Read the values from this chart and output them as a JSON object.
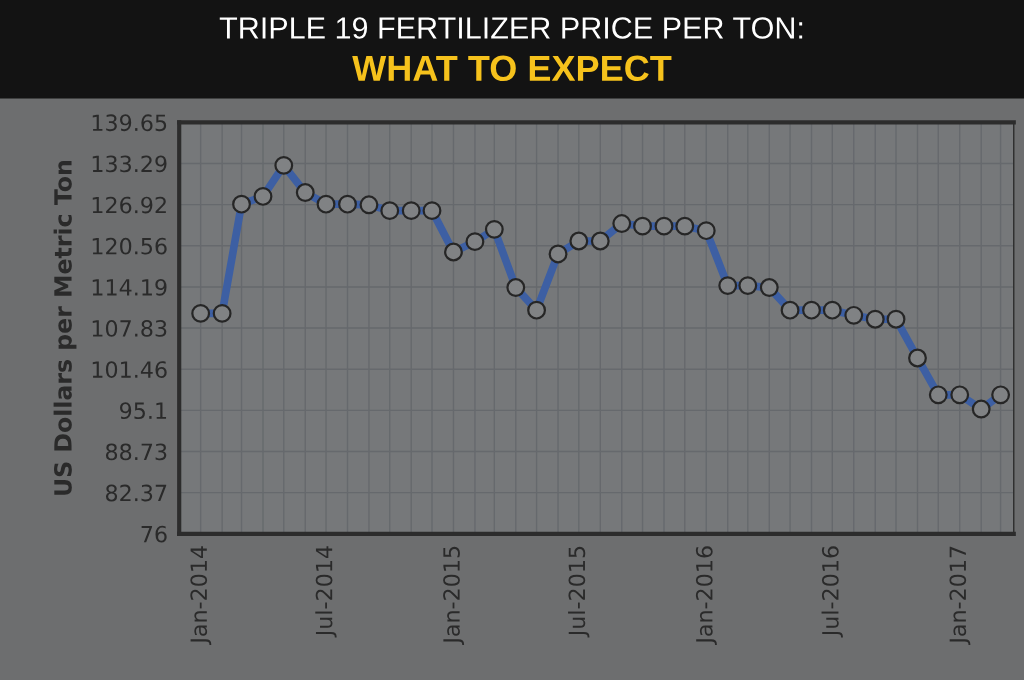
{
  "chart_data": {
    "type": "line",
    "title": "TRIPLE 19 FERTILIZER PRICE PER TON:",
    "subtitle": "WHAT TO EXPECT",
    "ylabel": "US Dollars per Metric Ton",
    "x": [
      "2014-01",
      "2014-02",
      "2014-03",
      "2014-04",
      "2014-05",
      "2014-06",
      "2014-07",
      "2014-08",
      "2014-09",
      "2014-10",
      "2014-11",
      "2014-12",
      "2015-01",
      "2015-02",
      "2015-03",
      "2015-04",
      "2015-05",
      "2015-06",
      "2015-07",
      "2015-08",
      "2015-09",
      "2015-10",
      "2015-11",
      "2015-12",
      "2016-01",
      "2016-02",
      "2016-03",
      "2016-04",
      "2016-05",
      "2016-06",
      "2016-07",
      "2016-08",
      "2016-09",
      "2016-10",
      "2016-11",
      "2016-12",
      "2017-01",
      "2017-02",
      "2017-03"
    ],
    "values": [
      110.1,
      110.1,
      127.0,
      128.2,
      133.0,
      128.8,
      127.0,
      127.0,
      126.9,
      126.0,
      126.0,
      126.0,
      119.6,
      121.2,
      123.1,
      114.1,
      110.6,
      119.3,
      121.3,
      121.3,
      124.0,
      123.6,
      123.6,
      123.6,
      122.9,
      114.4,
      114.4,
      114.1,
      110.6,
      110.6,
      110.6,
      109.8,
      109.2,
      109.2,
      103.2,
      97.5,
      97.5,
      95.3,
      97.5
    ],
    "color": "#3d5fa3",
    "marker": "circle",
    "line_style": "solid",
    "xlim": [
      "2013-12",
      "2017-03-20"
    ],
    "ylim": [
      76,
      139.65
    ],
    "yticks": [
      76,
      82.37,
      88.73,
      95.1,
      101.46,
      107.83,
      114.19,
      120.56,
      126.92,
      133.29,
      139.65
    ],
    "xticks": [
      {
        "value": "2014-01",
        "label": "Jan-2014"
      },
      {
        "value": "2014-02",
        "label": null
      },
      {
        "value": "2014-03",
        "label": null
      },
      {
        "value": "2014-04",
        "label": null
      },
      {
        "value": "2014-05",
        "label": null
      },
      {
        "value": "2014-06",
        "label": null
      },
      {
        "value": "2014-07",
        "label": "Jul-2014"
      },
      {
        "value": "2014-08",
        "label": null
      },
      {
        "value": "2014-09",
        "label": null
      },
      {
        "value": "2014-10",
        "label": null
      },
      {
        "value": "2014-11",
        "label": null
      },
      {
        "value": "2014-12",
        "label": null
      },
      {
        "value": "2015-01",
        "label": "Jan-2015"
      },
      {
        "value": "2015-02",
        "label": null
      },
      {
        "value": "2015-03",
        "label": null
      },
      {
        "value": "2015-04",
        "label": null
      },
      {
        "value": "2015-05",
        "label": null
      },
      {
        "value": "2015-06",
        "label": null
      },
      {
        "value": "2015-07",
        "label": "Jul-2015"
      },
      {
        "value": "2015-08",
        "label": null
      },
      {
        "value": "2015-09",
        "label": null
      },
      {
        "value": "2015-10",
        "label": null
      },
      {
        "value": "2015-11",
        "label": null
      },
      {
        "value": "2015-12",
        "label": null
      },
      {
        "value": "2016-01",
        "label": "Jan-2016"
      },
      {
        "value": "2016-02",
        "label": null
      },
      {
        "value": "2016-03",
        "label": null
      },
      {
        "value": "2016-04",
        "label": null
      },
      {
        "value": "2016-05",
        "label": null
      },
      {
        "value": "2016-06",
        "label": null
      },
      {
        "value": "2016-07",
        "label": "Jul-2016"
      },
      {
        "value": "2016-08",
        "label": null
      },
      {
        "value": "2016-09",
        "label": null
      },
      {
        "value": "2016-10",
        "label": null
      },
      {
        "value": "2016-11",
        "label": null
      },
      {
        "value": "2016-12",
        "label": null
      },
      {
        "value": "2017-01",
        "label": "Jan-2017"
      },
      {
        "value": "2017-02",
        "label": null
      },
      {
        "value": "2017-03",
        "label": null
      }
    ],
    "grid": true
  }
}
